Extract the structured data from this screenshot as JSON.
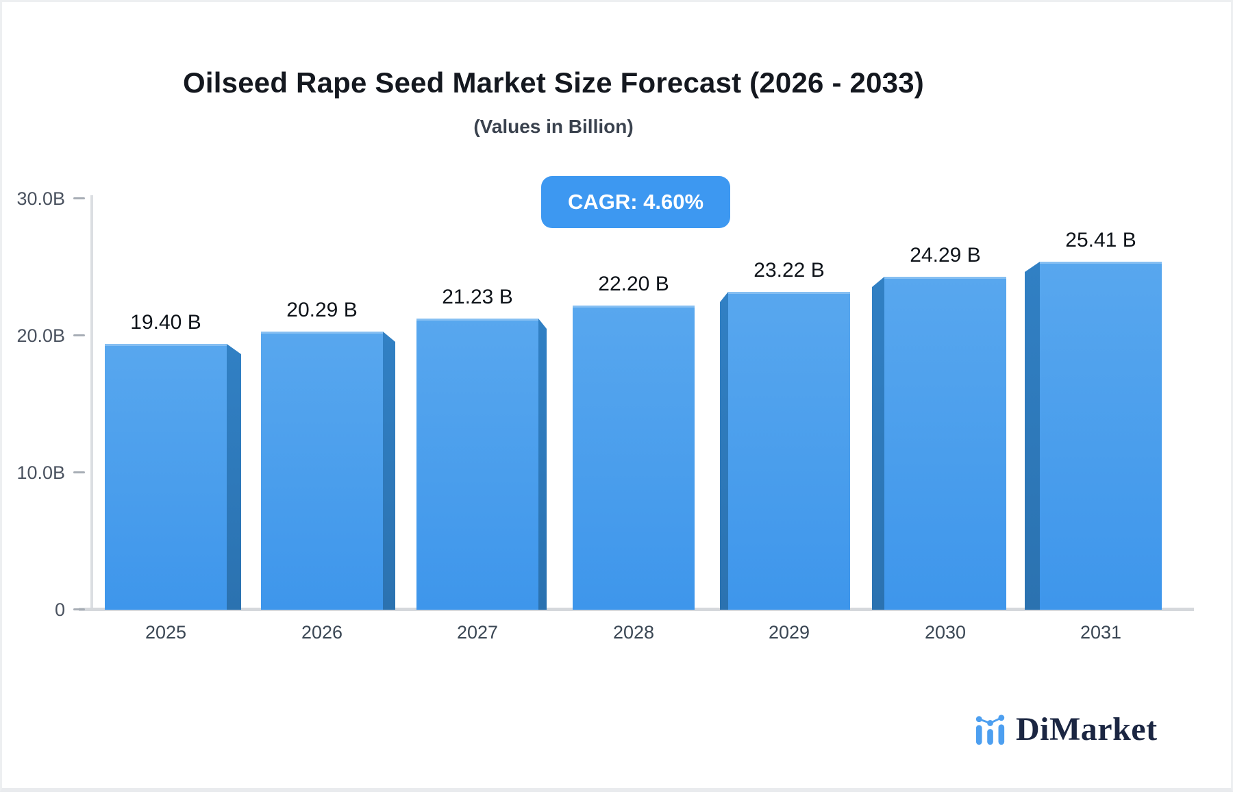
{
  "header": {
    "title": "Oilseed Rape Seed Market Size Forecast (2026 - 2033)",
    "subtitle": "(Values in Billion)",
    "cagr_badge": "CAGR: 4.60%",
    "badge_color": "#3d98f1"
  },
  "chart_data": {
    "type": "bar",
    "title": "Oilseed Rape Seed Market Size Forecast (2026 - 2033)",
    "subtitle": "(Values in Billion)",
    "cagr": "4.60%",
    "categories": [
      "2025",
      "2026",
      "2027",
      "2028",
      "2029",
      "2030",
      "2031"
    ],
    "values": [
      19.4,
      20.29,
      21.23,
      22.2,
      23.22,
      24.29,
      25.41
    ],
    "value_labels": [
      "19.40 B",
      "20.29 B",
      "21.23 B",
      "22.20 B",
      "23.22 B",
      "24.29 B",
      "25.41 B"
    ],
    "ylim": [
      0,
      30
    ],
    "yticks": [
      {
        "label": "30.0B",
        "value": 30
      },
      {
        "label": "20.0B",
        "value": 20
      },
      {
        "label": "10.0B",
        "value": 10
      },
      {
        "label": "0",
        "value": 0
      }
    ],
    "grid": false,
    "legend": false,
    "bar_color_top": "#58a7ee",
    "bar_color_bottom": "#3e96eb",
    "bar_side_color_top": "#3180c4",
    "bar_side_color_bottom": "#2b72b0"
  },
  "logo": {
    "text": "DiMarket",
    "icon": "mini-bar-line-chart-icon",
    "icon_color": "#4d9ff0"
  }
}
